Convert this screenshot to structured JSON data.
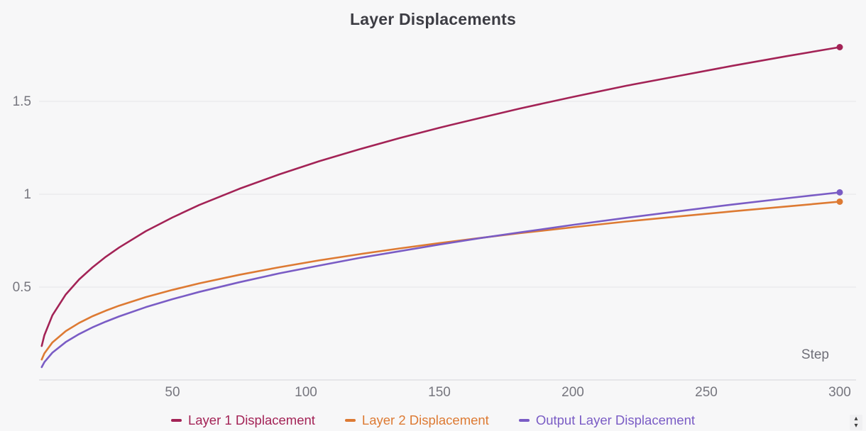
{
  "chart": {
    "title": "Layer Displacements",
    "xlabel": "Step"
  },
  "controls": {
    "stepper_up_icon": "▴",
    "stepper_down_icon": "▾"
  },
  "chart_data": {
    "type": "line",
    "title": "Layer Displacements",
    "xlabel": "Step",
    "ylabel": "",
    "xlim": [
      0,
      300
    ],
    "ylim": [
      0,
      1.85
    ],
    "x_ticks": [
      50,
      100,
      150,
      200,
      250,
      300
    ],
    "y_ticks": [
      0.5,
      1,
      1.5
    ],
    "grid": "horizontal",
    "legend_position": "bottom",
    "colors": {
      "grid": "#e4e4e8",
      "axis": "#d6d6da",
      "tick": "#76767e"
    },
    "x": [
      1,
      2,
      5,
      10,
      15,
      20,
      25,
      30,
      40,
      50,
      60,
      75,
      90,
      105,
      120,
      135,
      150,
      165,
      180,
      200,
      220,
      240,
      260,
      280,
      300
    ],
    "series": [
      {
        "id": "layer1",
        "name": "Layer 1 Displacement",
        "color": "#a32356",
        "values": [
          0.183,
          0.241,
          0.348,
          0.46,
          0.541,
          0.606,
          0.663,
          0.713,
          0.801,
          0.875,
          0.942,
          1.029,
          1.107,
          1.178,
          1.242,
          1.302,
          1.358,
          1.41,
          1.461,
          1.524,
          1.584,
          1.638,
          1.692,
          1.743,
          1.792
        ]
      },
      {
        "id": "layer2",
        "name": "Layer 2 Displacement",
        "color": "#dd7a33",
        "values": [
          0.11,
          0.143,
          0.202,
          0.263,
          0.307,
          0.343,
          0.373,
          0.4,
          0.446,
          0.485,
          0.52,
          0.566,
          0.607,
          0.644,
          0.677,
          0.708,
          0.737,
          0.764,
          0.79,
          0.822,
          0.853,
          0.881,
          0.908,
          0.934,
          0.96
        ]
      },
      {
        "id": "output",
        "name": "Output Layer Displacement",
        "color": "#7a5cc5",
        "values": [
          0.069,
          0.096,
          0.147,
          0.204,
          0.247,
          0.283,
          0.314,
          0.342,
          0.392,
          0.435,
          0.474,
          0.526,
          0.574,
          0.616,
          0.657,
          0.693,
          0.729,
          0.763,
          0.794,
          0.835,
          0.873,
          0.909,
          0.945,
          0.978,
          1.01
        ]
      }
    ]
  }
}
